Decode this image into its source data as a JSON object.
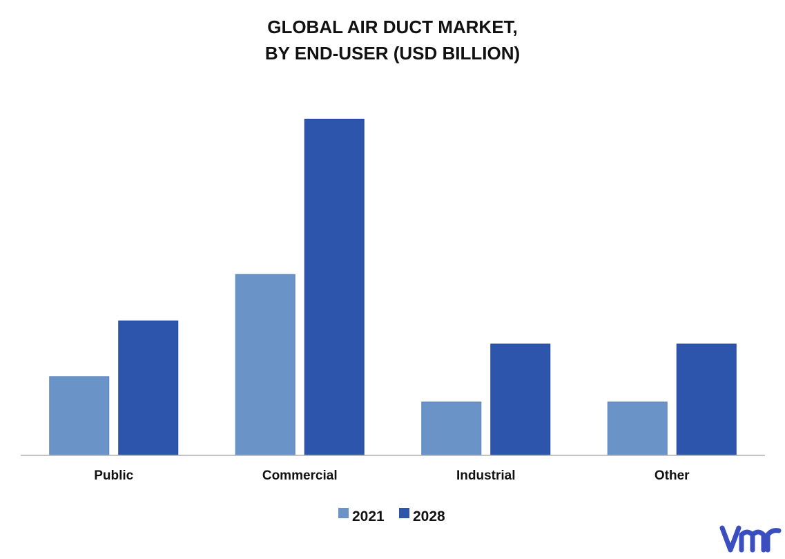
{
  "chart_data": {
    "type": "bar",
    "title_lines": [
      "GLOBAL AIR DUCT MARKET,",
      "BY END-USER (USD BILLION)"
    ],
    "categories": [
      "Public",
      "Commercial",
      "Industrial",
      "Other"
    ],
    "series": [
      {
        "name": "2021",
        "color": "#6A93C8",
        "values": [
          1.7,
          3.9,
          1.15,
          1.15
        ]
      },
      {
        "name": "2028",
        "color": "#2E55AC",
        "values": [
          2.9,
          7.25,
          2.4,
          2.4
        ]
      }
    ],
    "ylim": [
      0,
      8
    ],
    "grid": false,
    "legend_position": "bottom-center",
    "xlabel": "",
    "ylabel": ""
  },
  "logo": {
    "text": "vmr",
    "color": "#3A4EC0"
  }
}
